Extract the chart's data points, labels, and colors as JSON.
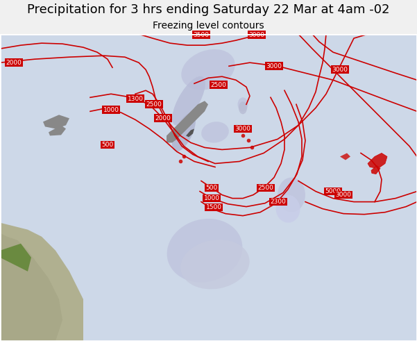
{
  "title": "Precipitation for 3 hrs ending Saturday 22 Mar at 4am -02",
  "subtitle": "Freezing level contours",
  "title_fontsize": 13,
  "subtitle_fontsize": 10,
  "bg_color_ocean": "#cdd8e8",
  "bg_color_precip": "#c8cde8",
  "land_color": "#b8b8b8",
  "land_color2": "#a0a87a",
  "contour_color": "#cc0000",
  "contour_linewidth": 1.2,
  "header_bg": "#f0f0f0",
  "fig_width": 6.01,
  "fig_height": 4.91,
  "dpi": 100
}
